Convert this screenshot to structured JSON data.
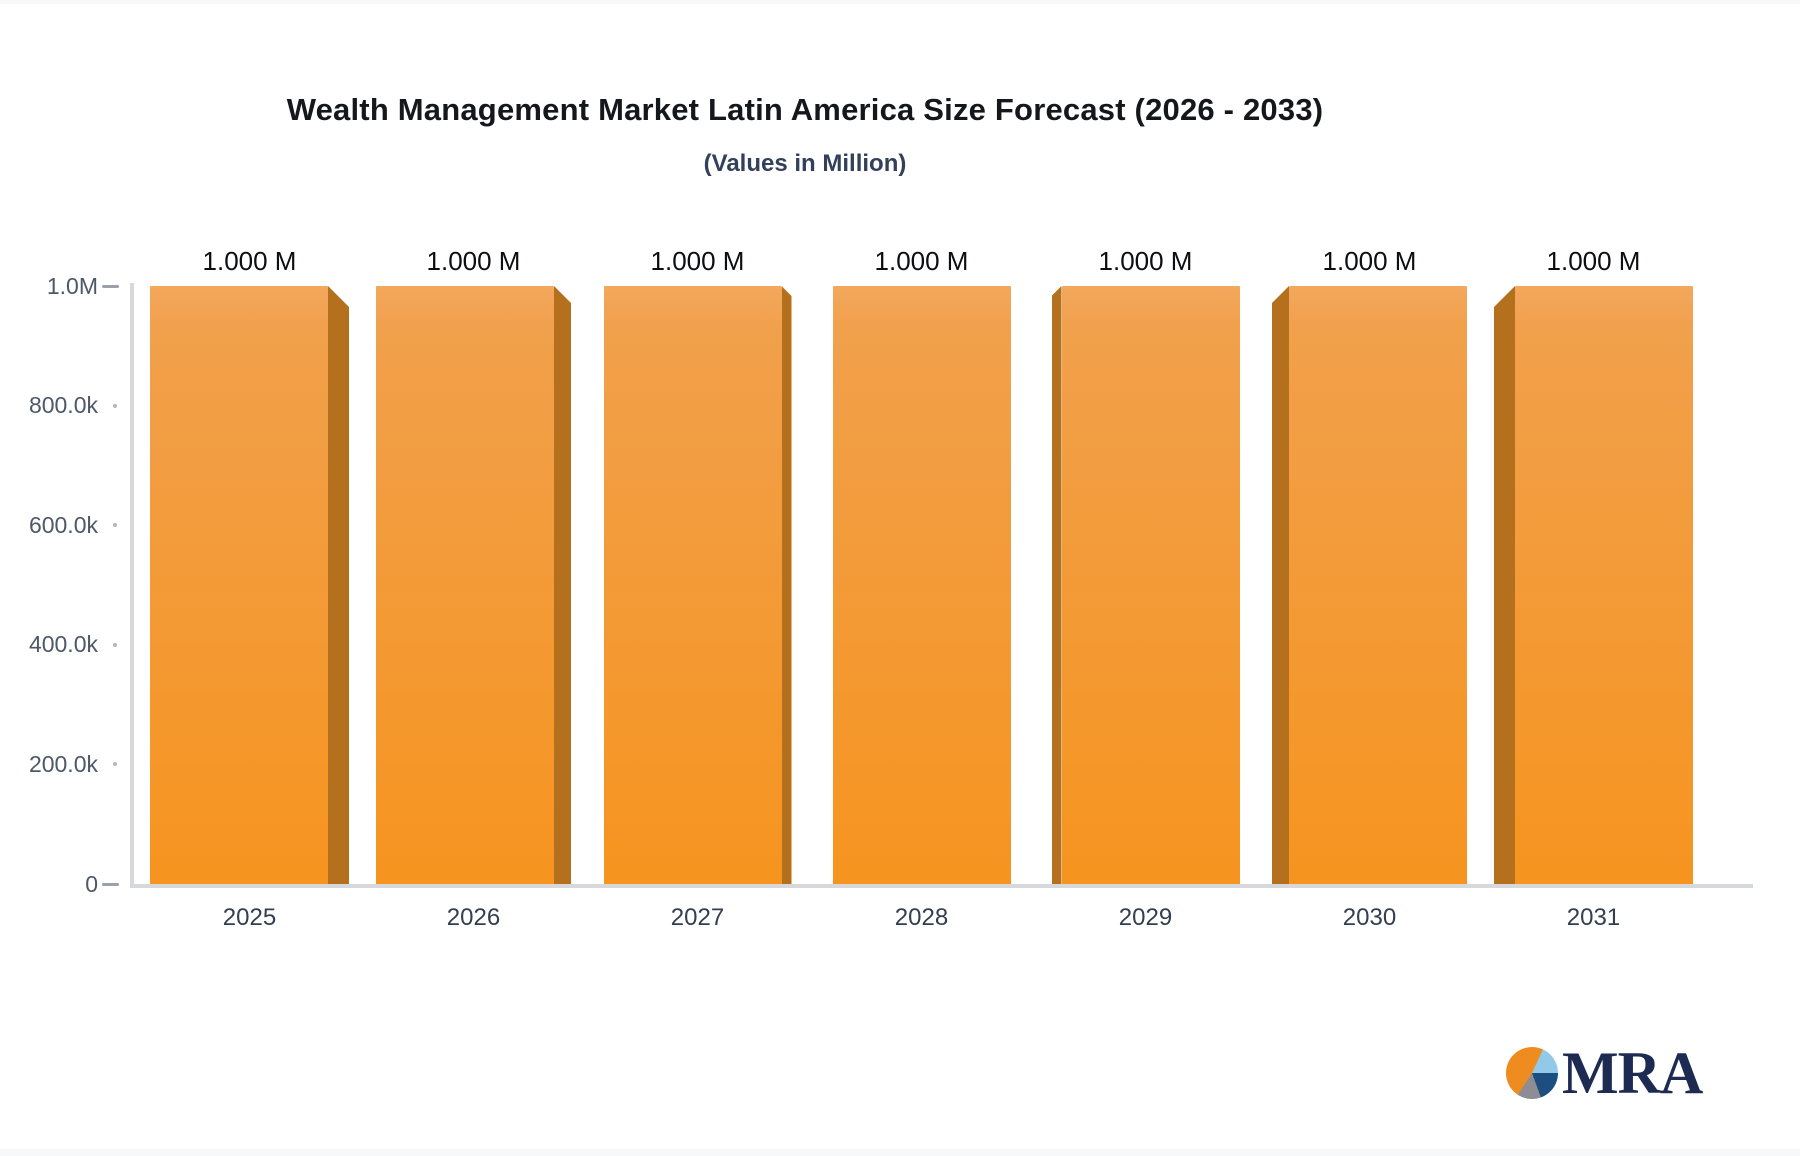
{
  "header": {
    "title": "Wealth Management Market Latin America Size Forecast (2026 - 2033)",
    "subtitle": "(Values in Million)"
  },
  "chart_data": {
    "type": "bar",
    "title": "Wealth Management Market Latin America Size Forecast (2026 - 2033)",
    "subtitle": "(Values in Million)",
    "categories": [
      "2025",
      "2026",
      "2027",
      "2028",
      "2029",
      "2030",
      "2031"
    ],
    "values": [
      1000000,
      1000000,
      1000000,
      1000000,
      1000000,
      1000000,
      1000000
    ],
    "value_labels": [
      "1.000 M",
      "1.000 M",
      "1.000 M",
      "1.000 M",
      "1.000 M",
      "1.000 M",
      "1.000 M"
    ],
    "xlabel": "",
    "ylabel": "",
    "ylim": [
      0,
      1000000
    ],
    "y_ticks": [
      {
        "label": "1.0M",
        "value": 1000000,
        "tick": "dash"
      },
      {
        "label": "800.0k",
        "value": 800000,
        "tick": "dot"
      },
      {
        "label": "600.0k",
        "value": 600000,
        "tick": "dot"
      },
      {
        "label": "400.0k",
        "value": 400000,
        "tick": "dot"
      },
      {
        "label": "200.0k",
        "value": 200000,
        "tick": "dot"
      },
      {
        "label": "0",
        "value": 0,
        "tick": "dash"
      }
    ],
    "grid": false,
    "legend": "none",
    "bar_style": "3d-column",
    "colors": {
      "bar_body_top": "#f3a85d",
      "bar_body_mid": "#f1a04c",
      "bar_body_bottom": "#f6941f",
      "bar_side": "#b4701c",
      "axis_line": "#d6d8dc",
      "tick": "#9aa1ab",
      "y_label": "#4d5868",
      "x_label": "#333e50",
      "value_label": "#0c0e12",
      "title": "#14171c",
      "subtitle": "#32405a"
    }
  },
  "branding": {
    "logo_text": "MRA",
    "logo_text_color": "#1d2b52",
    "pie_slices": [
      {
        "name": "orange",
        "color": "#ef8c1f"
      },
      {
        "name": "light-blue",
        "color": "#93c9e8"
      },
      {
        "name": "navy",
        "color": "#1d4e80"
      },
      {
        "name": "gray",
        "color": "#8d8d93"
      }
    ]
  }
}
